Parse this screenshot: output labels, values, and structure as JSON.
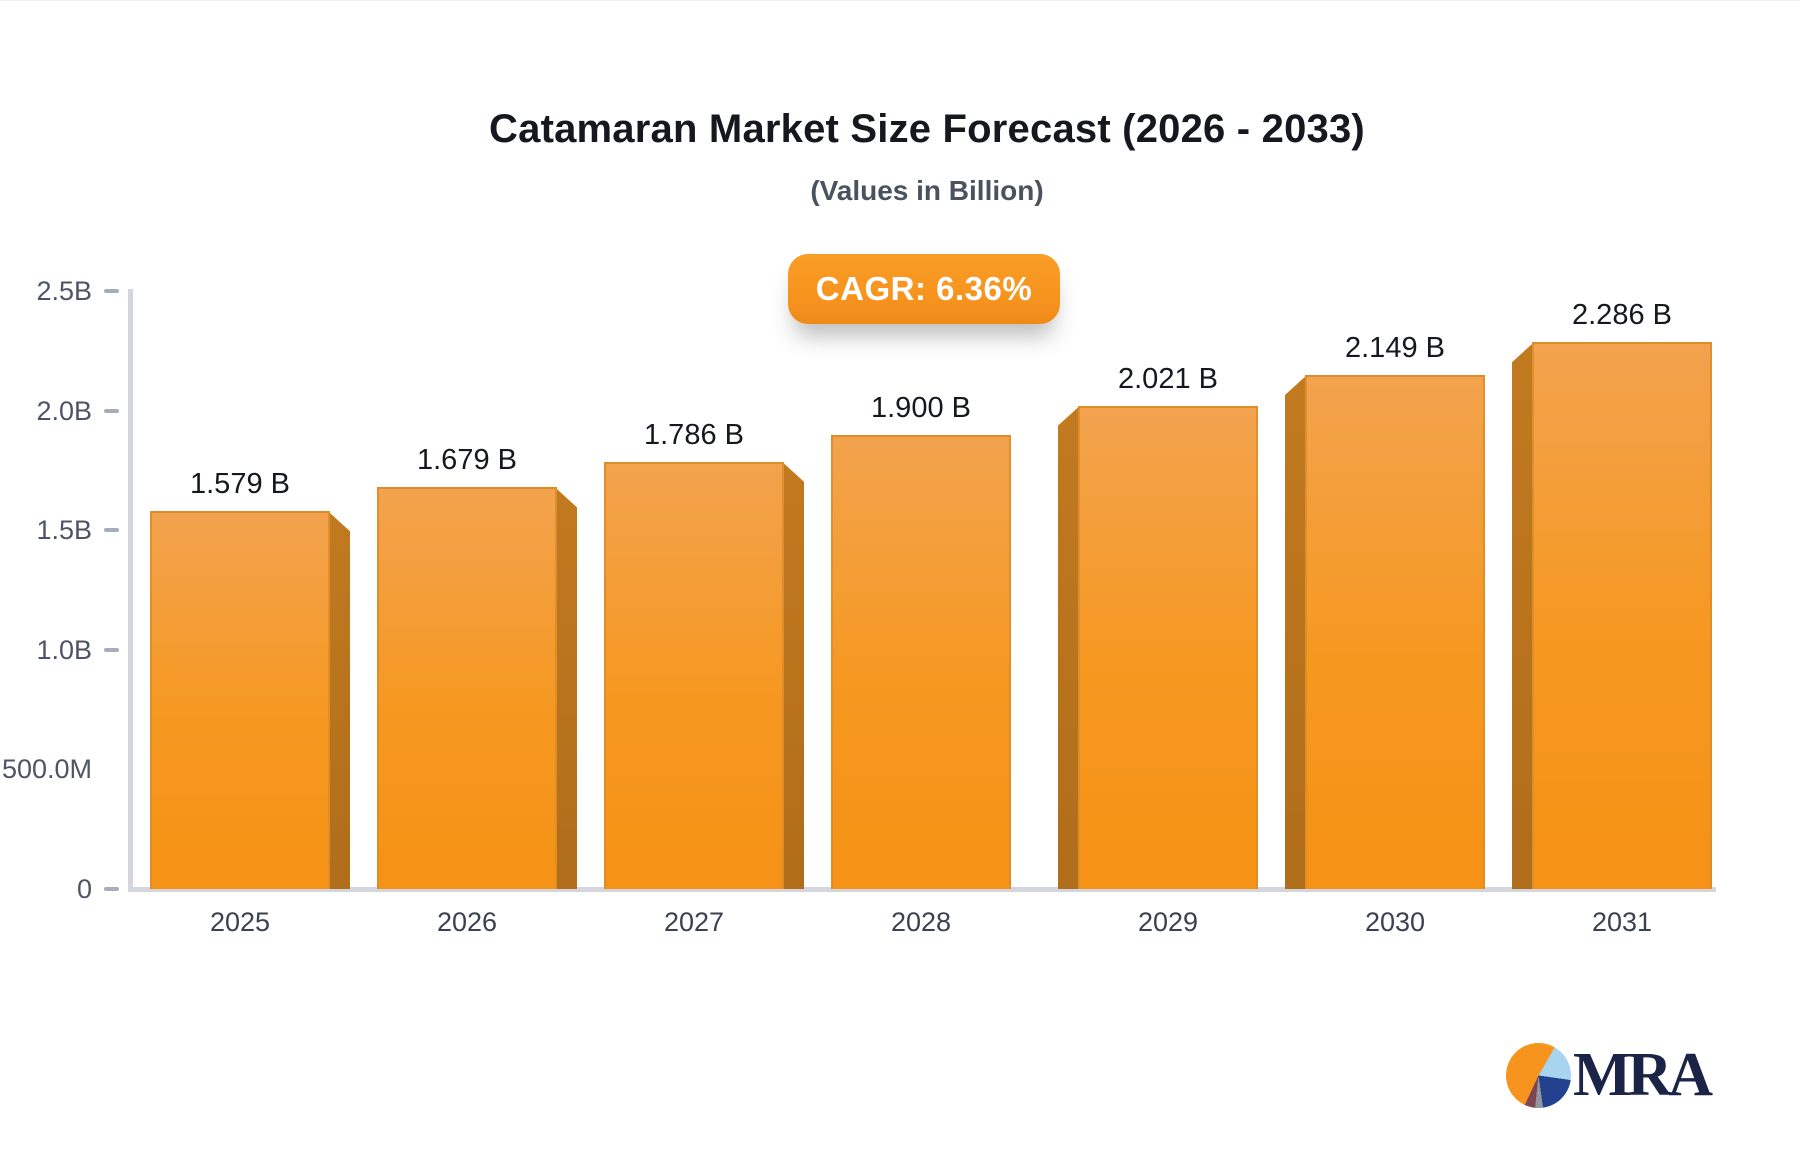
{
  "chart_data": {
    "type": "bar",
    "title": "Catamaran Market Size Forecast (2026 - 2033)",
    "subtitle": "(Values in Billion)",
    "badge_label": "CAGR: 6.36%",
    "cagr_percent": 6.36,
    "categories": [
      "2025",
      "2026",
      "2027",
      "2028",
      "2029",
      "2030",
      "2031"
    ],
    "values": [
      1.579,
      1.679,
      1.786,
      1.9,
      2.021,
      2.149,
      2.286
    ],
    "value_labels": [
      "1.579 B",
      "1.679 B",
      "1.786 B",
      "1.900 B",
      "2.021 B",
      "2.149 B",
      "2.286 B"
    ],
    "unit": "Billion USD",
    "ylim": [
      0,
      2.5
    ],
    "grid": false,
    "legend": false,
    "y_ticks": [
      {
        "label": "2.5B",
        "value": 2.5,
        "dash": true
      },
      {
        "label": "2.0B",
        "value": 2.0,
        "dash": true
      },
      {
        "label": "1.5B",
        "value": 1.5,
        "dash": true
      },
      {
        "label": "1.0B",
        "value": 1.0,
        "dash": true
      },
      {
        "label": "500.0M",
        "value": 0.5,
        "dash": false
      },
      {
        "label": "0",
        "value": 0,
        "dash": true
      }
    ],
    "colors": {
      "bar_fill": "#F7941E",
      "bar_fill_light": "#F3A34E",
      "bar_side": "#B06D1A",
      "axis": "#D3D6DC",
      "badge_background": "#F7941E",
      "badge_text": "#FFFFFF",
      "title_text": "#15181E",
      "subtitle_text": "#49525F",
      "tick_text": "#4D5564"
    }
  },
  "logo": {
    "text": "MRA",
    "pie_colors": [
      "#F7941E",
      "#A8D4EF",
      "#24418F",
      "#9297A1",
      "#7D4650"
    ]
  }
}
